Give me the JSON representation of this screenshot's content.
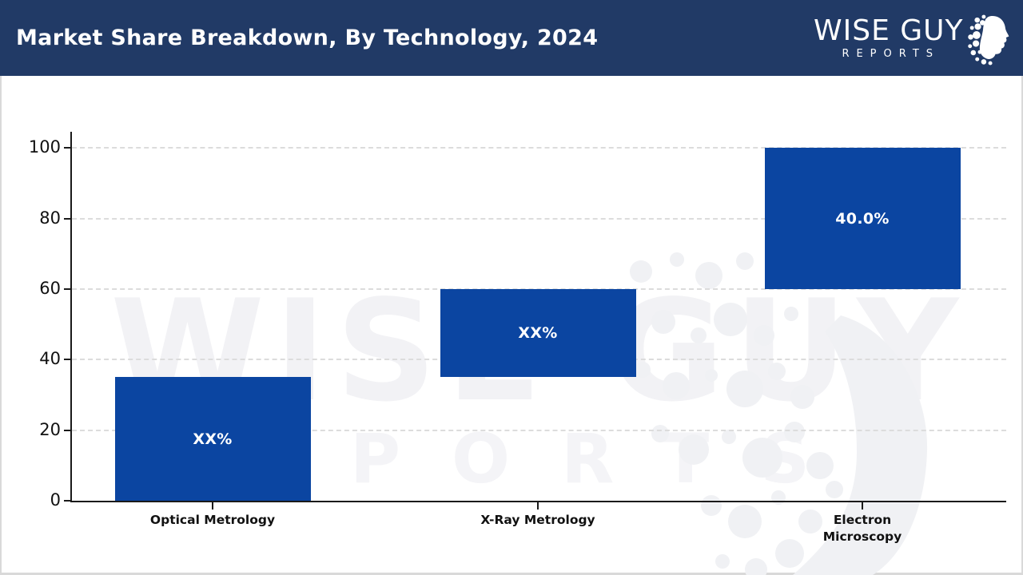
{
  "header": {
    "title": "Market Share Breakdown, By Technology, 2024",
    "logo": {
      "name": "WISE GUY",
      "sub": "REPORTS"
    }
  },
  "watermark": {
    "line1": "WISE GUY",
    "line2": "REPORTS"
  },
  "chart_data": {
    "type": "bar",
    "subtype": "waterfall-floating-bars",
    "title": "Market Share Breakdown, By Technology, 2024",
    "categories": [
      "Optical Metrology",
      "X-Ray Metrology",
      "Electron Microscopy"
    ],
    "bars": [
      {
        "category": "Optical Metrology",
        "label_lines": [
          "Optical Metrology"
        ],
        "start": 0,
        "end": 35,
        "value": 35,
        "data_label": "XX%"
      },
      {
        "category": "X-Ray Metrology",
        "label_lines": [
          "X-Ray Metrology"
        ],
        "start": 35,
        "end": 60,
        "value": 25,
        "data_label": "XX%"
      },
      {
        "category": "Electron Microscopy",
        "label_lines": [
          "Electron",
          "Microscopy"
        ],
        "start": 60,
        "end": 100,
        "value": 40,
        "data_label": "40.0%"
      }
    ],
    "yticks": [
      0,
      20,
      40,
      60,
      80,
      100
    ],
    "ylim": [
      0,
      105
    ],
    "xlabel": "",
    "ylabel": "",
    "grid": "horizontal-dashed",
    "legend": "none"
  },
  "colors": {
    "header_bg": "#213a66",
    "bar": "#0b45a1",
    "grid": "#dcdcdc",
    "axis": "#1a1a1a",
    "bar_label": "#ffffff",
    "watermark": "#f2f2f5"
  }
}
